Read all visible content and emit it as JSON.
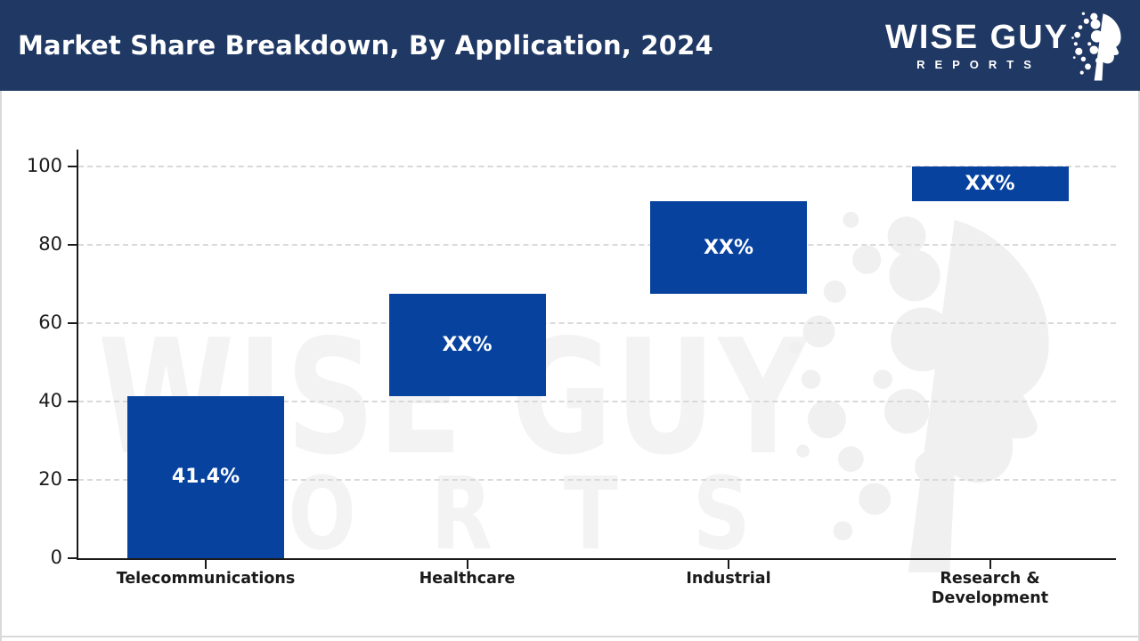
{
  "header": {
    "title": "Market Share Breakdown, By Application, 2024",
    "logo": {
      "line1": "WISE GUY",
      "line2": "REPORTS"
    }
  },
  "watermark": {
    "line1": "WISE GUY",
    "line2": "PORTS"
  },
  "chart_data": {
    "type": "bar",
    "subtype": "waterfall",
    "title": "Market Share Breakdown, By Application, 2024",
    "categories": [
      "Telecommunications",
      "Healthcare",
      "Industrial",
      "Research & Development"
    ],
    "categories_display": [
      [
        "Telecommunications"
      ],
      [
        "Healthcare"
      ],
      [
        "Industrial"
      ],
      [
        "Research &",
        "Development"
      ]
    ],
    "segments": [
      {
        "category": "Telecommunications",
        "start": 0,
        "end": 41.4,
        "label": "41.4%"
      },
      {
        "category": "Healthcare",
        "start": 41.4,
        "end": 67.5,
        "label": "XX%"
      },
      {
        "category": "Industrial",
        "start": 67.5,
        "end": 91.1,
        "label": "XX%"
      },
      {
        "category": "Research & Development",
        "start": 91.1,
        "end": 100,
        "label": "XX%"
      }
    ],
    "ylim": [
      0,
      100
    ],
    "yticks": [
      0,
      20,
      40,
      60,
      80,
      100
    ],
    "grid": "horizontal-dashed",
    "legend": "none",
    "xlabel": "",
    "ylabel": ""
  },
  "colors": {
    "header_bg": "#1f3864",
    "bar": "#07429e",
    "grid": "#d9d9d9",
    "axis": "#1a1a1a",
    "watermark": "#f3f3f4",
    "bar_label": "#ffffff",
    "frame_border": "#d9d9d9"
  }
}
